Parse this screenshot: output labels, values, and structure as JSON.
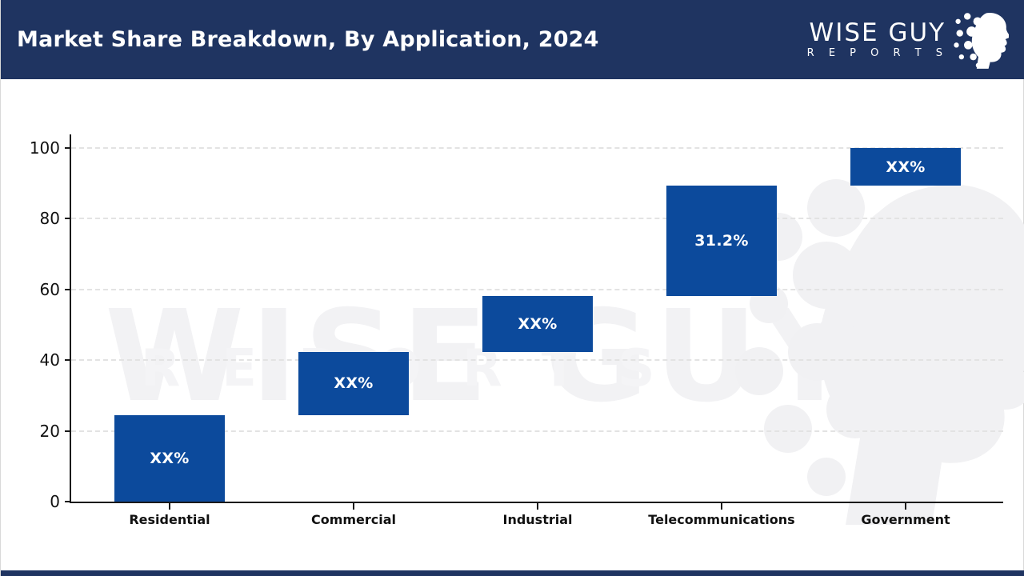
{
  "header": {
    "title": "Market Share Breakdown, By Application, 2024",
    "bg_color": "#1f3461",
    "logo": {
      "line1": "WISE GUY",
      "line2": "R E P O R T S",
      "head_icon": "dotted-profile-head-icon"
    }
  },
  "watermark": {
    "line1": "WISE GUY",
    "line2": "REPORTS",
    "head_icon": "dotted-profile-head-watermark"
  },
  "footer": {
    "bg_color": "#1f3461"
  },
  "chart_data": {
    "type": "bar",
    "subtype": "floating-waterfall",
    "title": "Market Share Breakdown, By Application, 2024",
    "categories": [
      "Residential",
      "Commercial",
      "Industrial",
      "Telecommunications",
      "Government"
    ],
    "segments": [
      {
        "category": "Residential",
        "base": 0,
        "top": 24.5,
        "value": 24.5,
        "label": "XX%"
      },
      {
        "category": "Commercial",
        "base": 24.5,
        "top": 42.3,
        "value": 17.8,
        "label": "XX%"
      },
      {
        "category": "Industrial",
        "base": 42.3,
        "top": 58.1,
        "value": 15.8,
        "label": "XX%"
      },
      {
        "category": "Telecommunications",
        "base": 58.1,
        "top": 89.3,
        "value": 31.2,
        "label": "31.2%"
      },
      {
        "category": "Government",
        "base": 89.3,
        "top": 100,
        "value": 10.7,
        "label": "XX%"
      }
    ],
    "yticks": [
      0,
      20,
      40,
      60,
      80,
      100
    ],
    "ylim": [
      0,
      103
    ],
    "xlabel": "",
    "ylabel": "",
    "grid": "horizontal-dashed",
    "legend": "none",
    "bar_color": "#0c4a9c",
    "bar_label_color": "#ffffff",
    "axis_color": "#1a1a1a",
    "gridline_color": "#e3e3e3"
  }
}
